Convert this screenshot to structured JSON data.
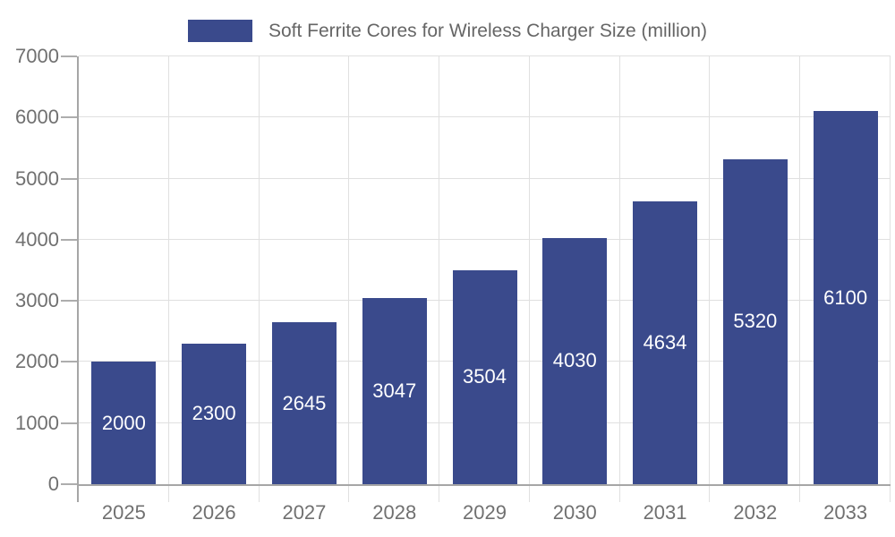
{
  "legend": {
    "label": "Soft Ferrite Cores for Wireless Charger Size (million)"
  },
  "chart_data": {
    "type": "bar",
    "title": "Soft Ferrite Cores for Wireless Charger Size (million)",
    "categories": [
      "2025",
      "2026",
      "2027",
      "2028",
      "2029",
      "2030",
      "2031",
      "2032",
      "2033"
    ],
    "values": [
      2000,
      2300,
      2645,
      3047,
      3504,
      4030,
      4634,
      5320,
      6100
    ],
    "bar_value_labels": [
      "2000",
      "2300",
      "2645",
      "3047",
      "3504",
      "4030",
      "4634",
      "5320",
      "6100"
    ],
    "xlabel": "",
    "ylabel": "",
    "ylim": [
      0,
      7000
    ],
    "ytick_interval": 1000,
    "yticks": [
      "0",
      "1000",
      "2000",
      "3000",
      "4000",
      "5000",
      "6000",
      "7000"
    ],
    "grid": true,
    "legend_position": "top",
    "value_label_position": "inside-center",
    "colors": {
      "bar": "#3a4a8c",
      "bar_label_text": "#ffffff",
      "gridline": "#e0e0e0",
      "axis_line": "#a6a6a6",
      "tick_label_text": "#707070",
      "legend_text": "#666666",
      "background": "#ffffff"
    }
  }
}
